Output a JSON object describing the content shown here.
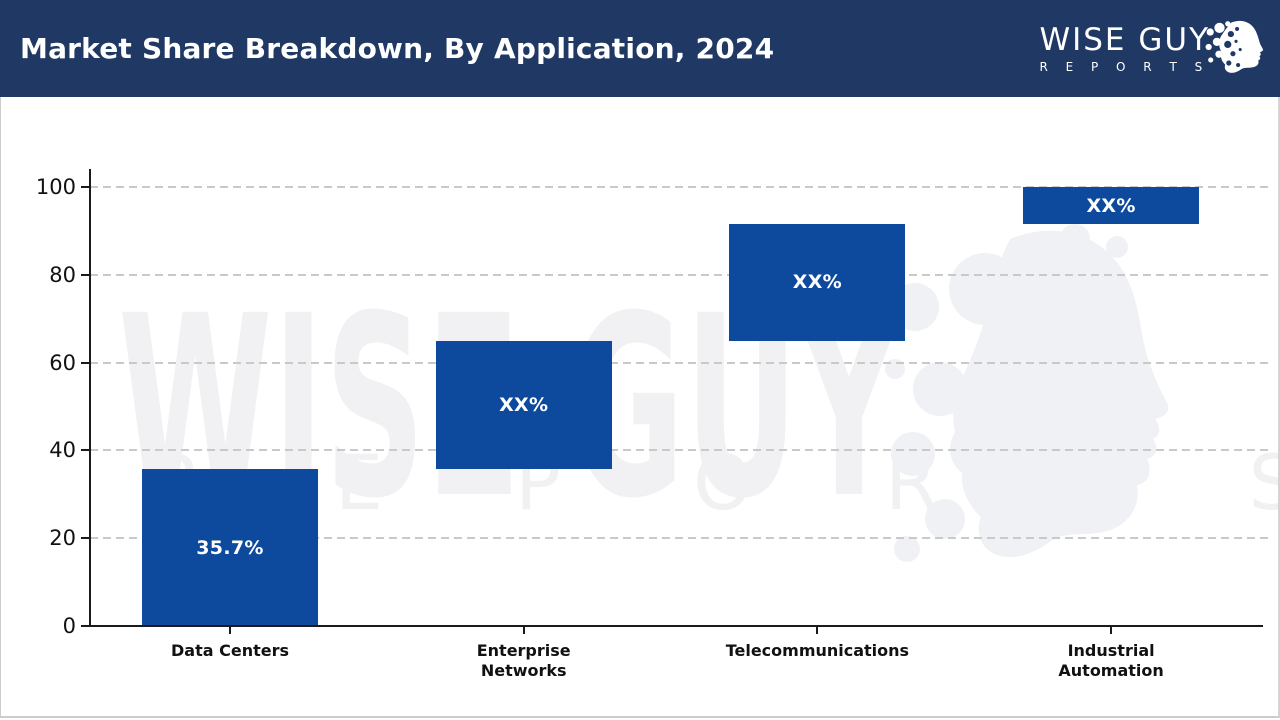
{
  "header": {
    "title": "Market Share Breakdown, By Application, 2024",
    "logo_line1": "WISE GUY",
    "logo_line2": "R E P O R T S"
  },
  "watermark": {
    "line1": "WISE GUY",
    "line2": "R E P O R T S"
  },
  "icons": {
    "header_logo_face": "face-profile-made-of-dots",
    "watermark_face": "face-profile-made-of-dots"
  },
  "colors": {
    "header_bg": "#1f3864",
    "bar_fill": "#0d4a9e",
    "bar_label": "#ffffff",
    "axis": "#1a1a1a",
    "gridline": "#c9c9c9",
    "tick_label": "#111111",
    "watermark": "#f1f1f3",
    "frame_border": "#cccccc"
  },
  "chart_data": {
    "type": "bar",
    "variant": "waterfall-floating-bars",
    "title": "Market Share Breakdown, By Application, 2024",
    "categories": [
      "Data Centers",
      "Enterprise Networks",
      "Telecommunications",
      "Industrial Automation"
    ],
    "category_label_lines": [
      [
        "Data Centers"
      ],
      [
        "Enterprise",
        "Networks"
      ],
      [
        "Telecommunications"
      ],
      [
        "Industrial",
        "Automation"
      ]
    ],
    "segments": [
      {
        "category": "Data Centers",
        "start": 0,
        "end": 35.7,
        "label": "35.7%"
      },
      {
        "category": "Enterprise Networks",
        "start": 35.7,
        "end": 65,
        "label": "XX%"
      },
      {
        "category": "Telecommunications",
        "start": 65,
        "end": 91.5,
        "label": "XX%"
      },
      {
        "category": "Industrial Automation",
        "start": 91.5,
        "end": 100,
        "label": "XX%"
      }
    ],
    "xlabel": "",
    "ylabel": "",
    "ylim": [
      0,
      100
    ],
    "yticks": [
      0,
      20,
      40,
      60,
      80,
      100
    ],
    "grid": "horizontal-dashed",
    "legend": "none"
  }
}
